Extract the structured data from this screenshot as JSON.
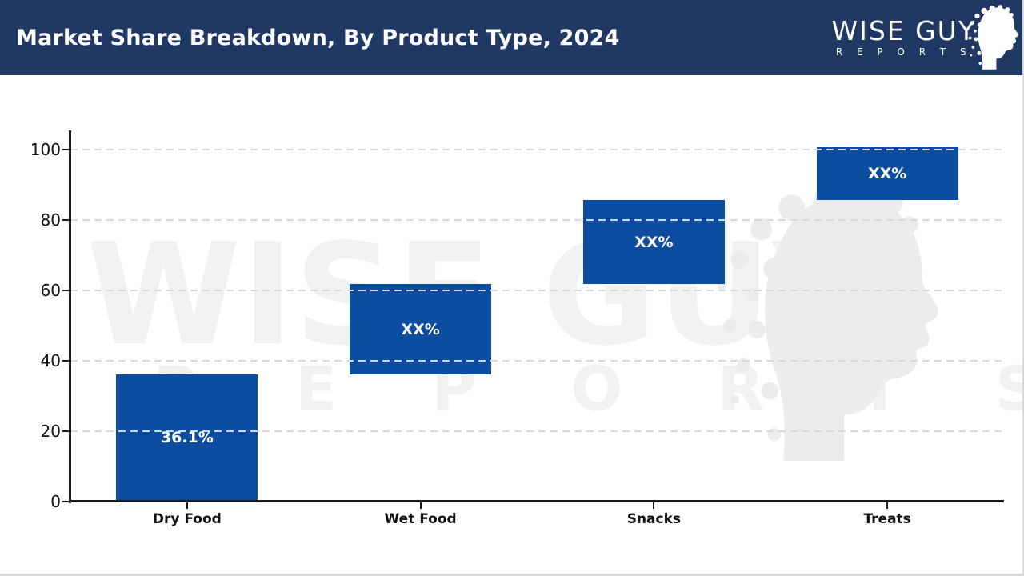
{
  "header": {
    "title": "Market Share Breakdown, By Product Type, 2024",
    "bg_color": "#1f3864",
    "logo": {
      "wordmark": "WISE GUY",
      "subtitle": "R E P O R T S",
      "face_icon": "dotted-head-profile"
    }
  },
  "watermark": {
    "wordmark": "WISE GUY",
    "subtitle": "R E P O R T S",
    "color": "#f1f1f3"
  },
  "chart_data": {
    "type": "bar",
    "subtype": "waterfall",
    "title": "Market Share Breakdown, By Product Type, 2024",
    "categories": [
      "Dry Food",
      "Wet Food",
      "Snacks",
      "Treats"
    ],
    "series": [
      {
        "name": "Market share (%)",
        "segments": [
          {
            "category": "Dry Food",
            "start": 0,
            "end": 36.1,
            "label": "36.1%"
          },
          {
            "category": "Wet Food",
            "start": 36.1,
            "end": 61.6,
            "label": "XX%"
          },
          {
            "category": "Snacks",
            "start": 61.6,
            "end": 85.6,
            "label": "XX%"
          },
          {
            "category": "Treats",
            "start": 85.6,
            "end": 100.5,
            "label": "XX%"
          }
        ]
      }
    ],
    "xlabel": "",
    "ylabel": "",
    "y_ticks": [
      0,
      20,
      40,
      60,
      80,
      100
    ],
    "ylim": [
      0,
      105
    ],
    "grid": "horizontal dashed, drawn over bars",
    "legend": "none",
    "bar_color": "#0d4da0",
    "bar_label_color": "#ffffff",
    "gridline_color": "#d8d8d8",
    "axis_color": "#1a1a1a"
  }
}
